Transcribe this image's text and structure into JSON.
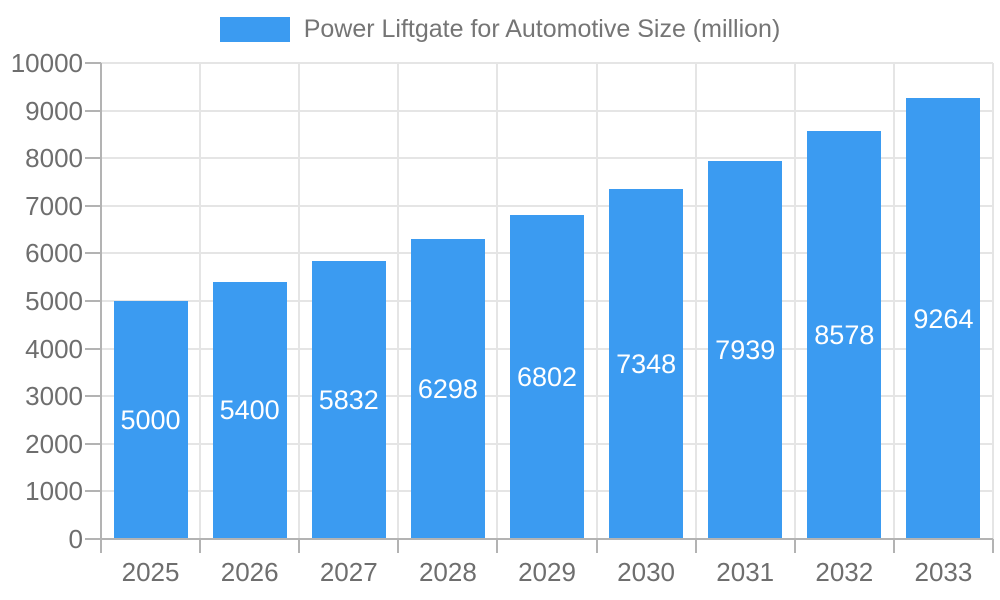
{
  "legend": {
    "label": "Power Liftgate for Automotive Size (million)"
  },
  "colors": {
    "bar": "#3B9BF1",
    "bar_label": "#FFFFFF",
    "grid": "#E5E5E5",
    "axis": "#B3B3B3",
    "tick": "#B3B3B3",
    "axis_label": "#6E6E6E",
    "legend_text": "#757575",
    "background": "#FFFFFF"
  },
  "chart_data": {
    "type": "bar",
    "title": "Power Liftgate for Automotive Size (million)",
    "series_name": "Power Liftgate for Automotive Size (million)",
    "categories": [
      "2025",
      "2026",
      "2027",
      "2028",
      "2029",
      "2030",
      "2031",
      "2032",
      "2033"
    ],
    "values": [
      5000,
      5400,
      5832,
      6298,
      6802,
      7348,
      7939,
      8578,
      9264
    ],
    "bar_value_labels": [
      "5000",
      "5400",
      "5832",
      "6298",
      "6802",
      "7348",
      "7939",
      "8578",
      "9264"
    ],
    "xlabel": "",
    "ylabel": "",
    "ylim": [
      0,
      10000
    ],
    "ytick_step": 1000,
    "ytick_labels": [
      "0",
      "1000",
      "2000",
      "3000",
      "4000",
      "5000",
      "6000",
      "7000",
      "8000",
      "9000",
      "10000"
    ],
    "grid": true,
    "legend_position": "top",
    "bar_labels_visible": true,
    "bar_label_position": "center"
  }
}
